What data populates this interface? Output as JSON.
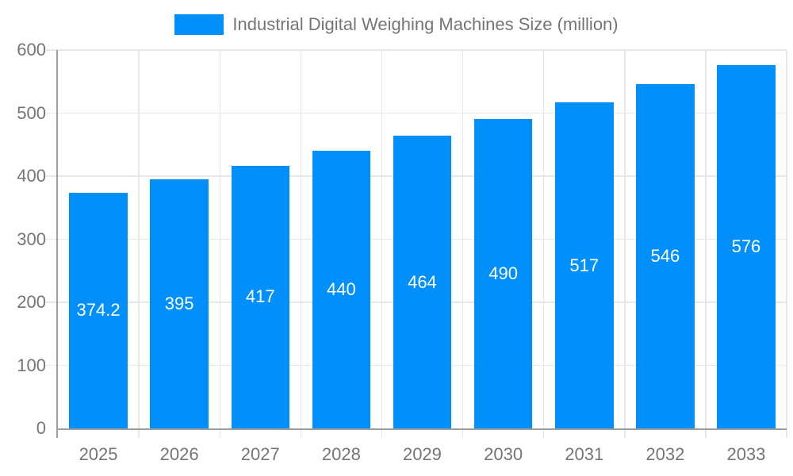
{
  "chart_data": {
    "type": "bar",
    "title": "Industrial Digital Weighing Machines Size (million)",
    "legend_position": "top",
    "grid": true,
    "categories": [
      "2025",
      "2026",
      "2027",
      "2028",
      "2029",
      "2030",
      "2031",
      "2032",
      "2033"
    ],
    "values": [
      374.2,
      395,
      417,
      440,
      464,
      490,
      517,
      546,
      576
    ],
    "value_labels": [
      "374.2",
      "395",
      "417",
      "440",
      "464",
      "490",
      "517",
      "546",
      "576"
    ],
    "xlabel": "",
    "ylabel": "",
    "ylim": [
      0,
      600
    ],
    "yticks": [
      0,
      100,
      200,
      300,
      400,
      500,
      600
    ],
    "colors": {
      "bar": "#008FFB",
      "grid": "#e7e7e7",
      "axis": "#9e9e9e",
      "tick_label": "#757575",
      "legend_text": "#757575",
      "value_label": "#ffffff"
    }
  }
}
